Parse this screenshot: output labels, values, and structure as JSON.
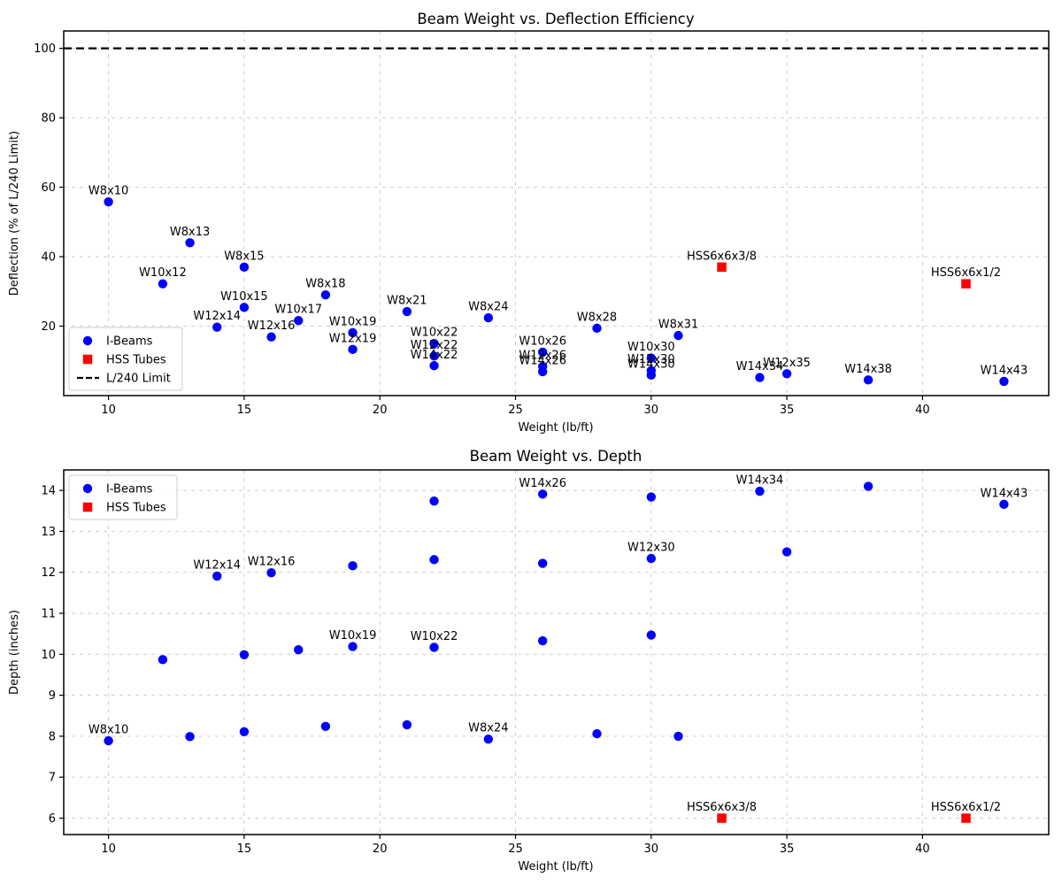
{
  "figure": {
    "background": "#ffffff",
    "grid_color": "#c9c9c9",
    "spine_color": "#000000"
  },
  "chart_data": [
    {
      "type": "scatter",
      "title": "Beam Weight vs. Deflection Efficiency",
      "xlabel": "Weight (lb/ft)",
      "ylabel": "Deflection (% of L/240 Limit)",
      "xlim": [
        8.35,
        44.65
      ],
      "ylim": [
        0,
        105
      ],
      "xticks": [
        10,
        15,
        20,
        25,
        30,
        35,
        40
      ],
      "yticks": [
        20,
        40,
        60,
        80,
        100
      ],
      "grid": true,
      "ref_line": {
        "y": 100,
        "label": "L/240 Limit",
        "style": "dashed",
        "color": "#000000"
      },
      "legend": {
        "loc": "lower-left",
        "entries": [
          {
            "label": "I-Beams",
            "marker": "circle",
            "color": "#0000ff"
          },
          {
            "label": "HSS Tubes",
            "marker": "square",
            "color": "#ff0000"
          },
          {
            "label": "L/240 Limit",
            "marker": "dashed-line",
            "color": "#000000"
          }
        ]
      },
      "series": [
        {
          "name": "I-Beams",
          "marker": "circle",
          "color": "#0000ff",
          "points": [
            {
              "label": "W8x10",
              "x": 10,
              "y": 55.8,
              "labeled": true
            },
            {
              "label": "W10x12",
              "x": 12,
              "y": 32.2,
              "labeled": true
            },
            {
              "label": "W8x13",
              "x": 13,
              "y": 44.0,
              "labeled": true
            },
            {
              "label": "W12x14",
              "x": 14,
              "y": 19.7,
              "labeled": true
            },
            {
              "label": "W8x15",
              "x": 15,
              "y": 37.0,
              "labeled": true
            },
            {
              "label": "W10x15",
              "x": 15,
              "y": 25.4,
              "labeled": true
            },
            {
              "label": "W12x16",
              "x": 16,
              "y": 16.9,
              "labeled": true
            },
            {
              "label": "W10x17",
              "x": 17,
              "y": 21.6,
              "labeled": true
            },
            {
              "label": "W8x18",
              "x": 18,
              "y": 29.0,
              "labeled": true
            },
            {
              "label": "W10x19",
              "x": 19,
              "y": 18.1,
              "labeled": true
            },
            {
              "label": "W12x19",
              "x": 19,
              "y": 13.3,
              "labeled": true
            },
            {
              "label": "W8x21",
              "x": 21,
              "y": 24.2,
              "labeled": true
            },
            {
              "label": "W10x22",
              "x": 22,
              "y": 15.0,
              "labeled": true
            },
            {
              "label": "W12x22",
              "x": 22,
              "y": 11.4,
              "labeled": true
            },
            {
              "label": "W14x22",
              "x": 22,
              "y": 8.6,
              "labeled": true
            },
            {
              "label": "W8x24",
              "x": 24,
              "y": 22.4,
              "labeled": true
            },
            {
              "label": "W10x26",
              "x": 26,
              "y": 12.5,
              "labeled": true
            },
            {
              "label": "W12x26",
              "x": 26,
              "y": 8.4,
              "labeled": true
            },
            {
              "label": "W14x26",
              "x": 26,
              "y": 6.9,
              "labeled": true
            },
            {
              "label": "W8x28",
              "x": 28,
              "y": 19.4,
              "labeled": true
            },
            {
              "label": "W10x30",
              "x": 30,
              "y": 10.8,
              "labeled": true
            },
            {
              "label": "W12x30",
              "x": 30,
              "y": 7.2,
              "labeled": true
            },
            {
              "label": "W14x30",
              "x": 30,
              "y": 5.9,
              "labeled": true
            },
            {
              "label": "W8x31",
              "x": 31,
              "y": 17.3,
              "labeled": true
            },
            {
              "label": "W14x34",
              "x": 34,
              "y": 5.2,
              "labeled": true
            },
            {
              "label": "W12x35",
              "x": 35,
              "y": 6.3,
              "labeled": true
            },
            {
              "label": "W14x38",
              "x": 38,
              "y": 4.5,
              "labeled": true
            },
            {
              "label": "W14x43",
              "x": 43,
              "y": 4.1,
              "labeled": true
            }
          ]
        },
        {
          "name": "HSS Tubes",
          "marker": "square",
          "color": "#ff0000",
          "points": [
            {
              "label": "HSS6x6x3/8",
              "x": 32.6,
              "y": 37.0,
              "labeled": true
            },
            {
              "label": "HSS6x6x1/2",
              "x": 41.6,
              "y": 32.2,
              "labeled": true
            }
          ]
        }
      ]
    },
    {
      "type": "scatter",
      "title": "Beam Weight vs. Depth",
      "xlabel": "Weight (lb/ft)",
      "ylabel": "Depth (inches)",
      "xlim": [
        8.35,
        44.65
      ],
      "ylim": [
        5.6,
        14.5
      ],
      "xticks": [
        10,
        15,
        20,
        25,
        30,
        35,
        40
      ],
      "yticks": [
        6,
        7,
        8,
        9,
        10,
        11,
        12,
        13,
        14
      ],
      "grid": true,
      "ref_line": null,
      "legend": {
        "loc": "upper-left",
        "entries": [
          {
            "label": "I-Beams",
            "marker": "circle",
            "color": "#0000ff"
          },
          {
            "label": "HSS Tubes",
            "marker": "square",
            "color": "#ff0000"
          }
        ]
      },
      "series": [
        {
          "name": "I-Beams",
          "marker": "circle",
          "color": "#0000ff",
          "points": [
            {
              "label": "W8x10",
              "x": 10,
              "y": 7.89,
              "labeled": true
            },
            {
              "label": "W10x12",
              "x": 12,
              "y": 9.87,
              "labeled": false
            },
            {
              "label": "W8x13",
              "x": 13,
              "y": 7.99,
              "labeled": false
            },
            {
              "label": "W12x14",
              "x": 14,
              "y": 11.91,
              "labeled": true
            },
            {
              "label": "W8x15",
              "x": 15,
              "y": 8.11,
              "labeled": false
            },
            {
              "label": "W10x15",
              "x": 15,
              "y": 9.99,
              "labeled": false
            },
            {
              "label": "W12x16",
              "x": 16,
              "y": 11.99,
              "labeled": true
            },
            {
              "label": "W10x17",
              "x": 17,
              "y": 10.11,
              "labeled": false
            },
            {
              "label": "W8x18",
              "x": 18,
              "y": 8.24,
              "labeled": false
            },
            {
              "label": "W10x19",
              "x": 19,
              "y": 10.19,
              "labeled": true
            },
            {
              "label": "W12x19",
              "x": 19,
              "y": 12.16,
              "labeled": false
            },
            {
              "label": "W8x21",
              "x": 21,
              "y": 8.28,
              "labeled": false
            },
            {
              "label": "W10x22",
              "x": 22,
              "y": 10.17,
              "labeled": true
            },
            {
              "label": "W12x22",
              "x": 22,
              "y": 12.31,
              "labeled": false
            },
            {
              "label": "W14x22",
              "x": 22,
              "y": 13.74,
              "labeled": false
            },
            {
              "label": "W8x24",
              "x": 24,
              "y": 7.93,
              "labeled": true
            },
            {
              "label": "W10x26",
              "x": 26,
              "y": 10.33,
              "labeled": false
            },
            {
              "label": "W12x26",
              "x": 26,
              "y": 12.22,
              "labeled": false
            },
            {
              "label": "W14x26",
              "x": 26,
              "y": 13.91,
              "labeled": true
            },
            {
              "label": "W8x28",
              "x": 28,
              "y": 8.06,
              "labeled": false
            },
            {
              "label": "W10x30",
              "x": 30,
              "y": 10.47,
              "labeled": false
            },
            {
              "label": "W12x30",
              "x": 30,
              "y": 12.34,
              "labeled": true
            },
            {
              "label": "W14x30",
              "x": 30,
              "y": 13.84,
              "labeled": false
            },
            {
              "label": "W8x31",
              "x": 31,
              "y": 8.0,
              "labeled": false
            },
            {
              "label": "W14x34",
              "x": 34,
              "y": 13.98,
              "labeled": true
            },
            {
              "label": "W12x35",
              "x": 35,
              "y": 12.5,
              "labeled": false
            },
            {
              "label": "W14x38",
              "x": 38,
              "y": 14.1,
              "labeled": false
            },
            {
              "label": "W14x43",
              "x": 43,
              "y": 13.66,
              "labeled": true
            }
          ]
        },
        {
          "name": "HSS Tubes",
          "marker": "square",
          "color": "#ff0000",
          "points": [
            {
              "label": "HSS6x6x3/8",
              "x": 32.6,
              "y": 6.0,
              "labeled": true
            },
            {
              "label": "HSS6x6x1/2",
              "x": 41.6,
              "y": 6.0,
              "labeled": true
            }
          ]
        }
      ]
    }
  ]
}
